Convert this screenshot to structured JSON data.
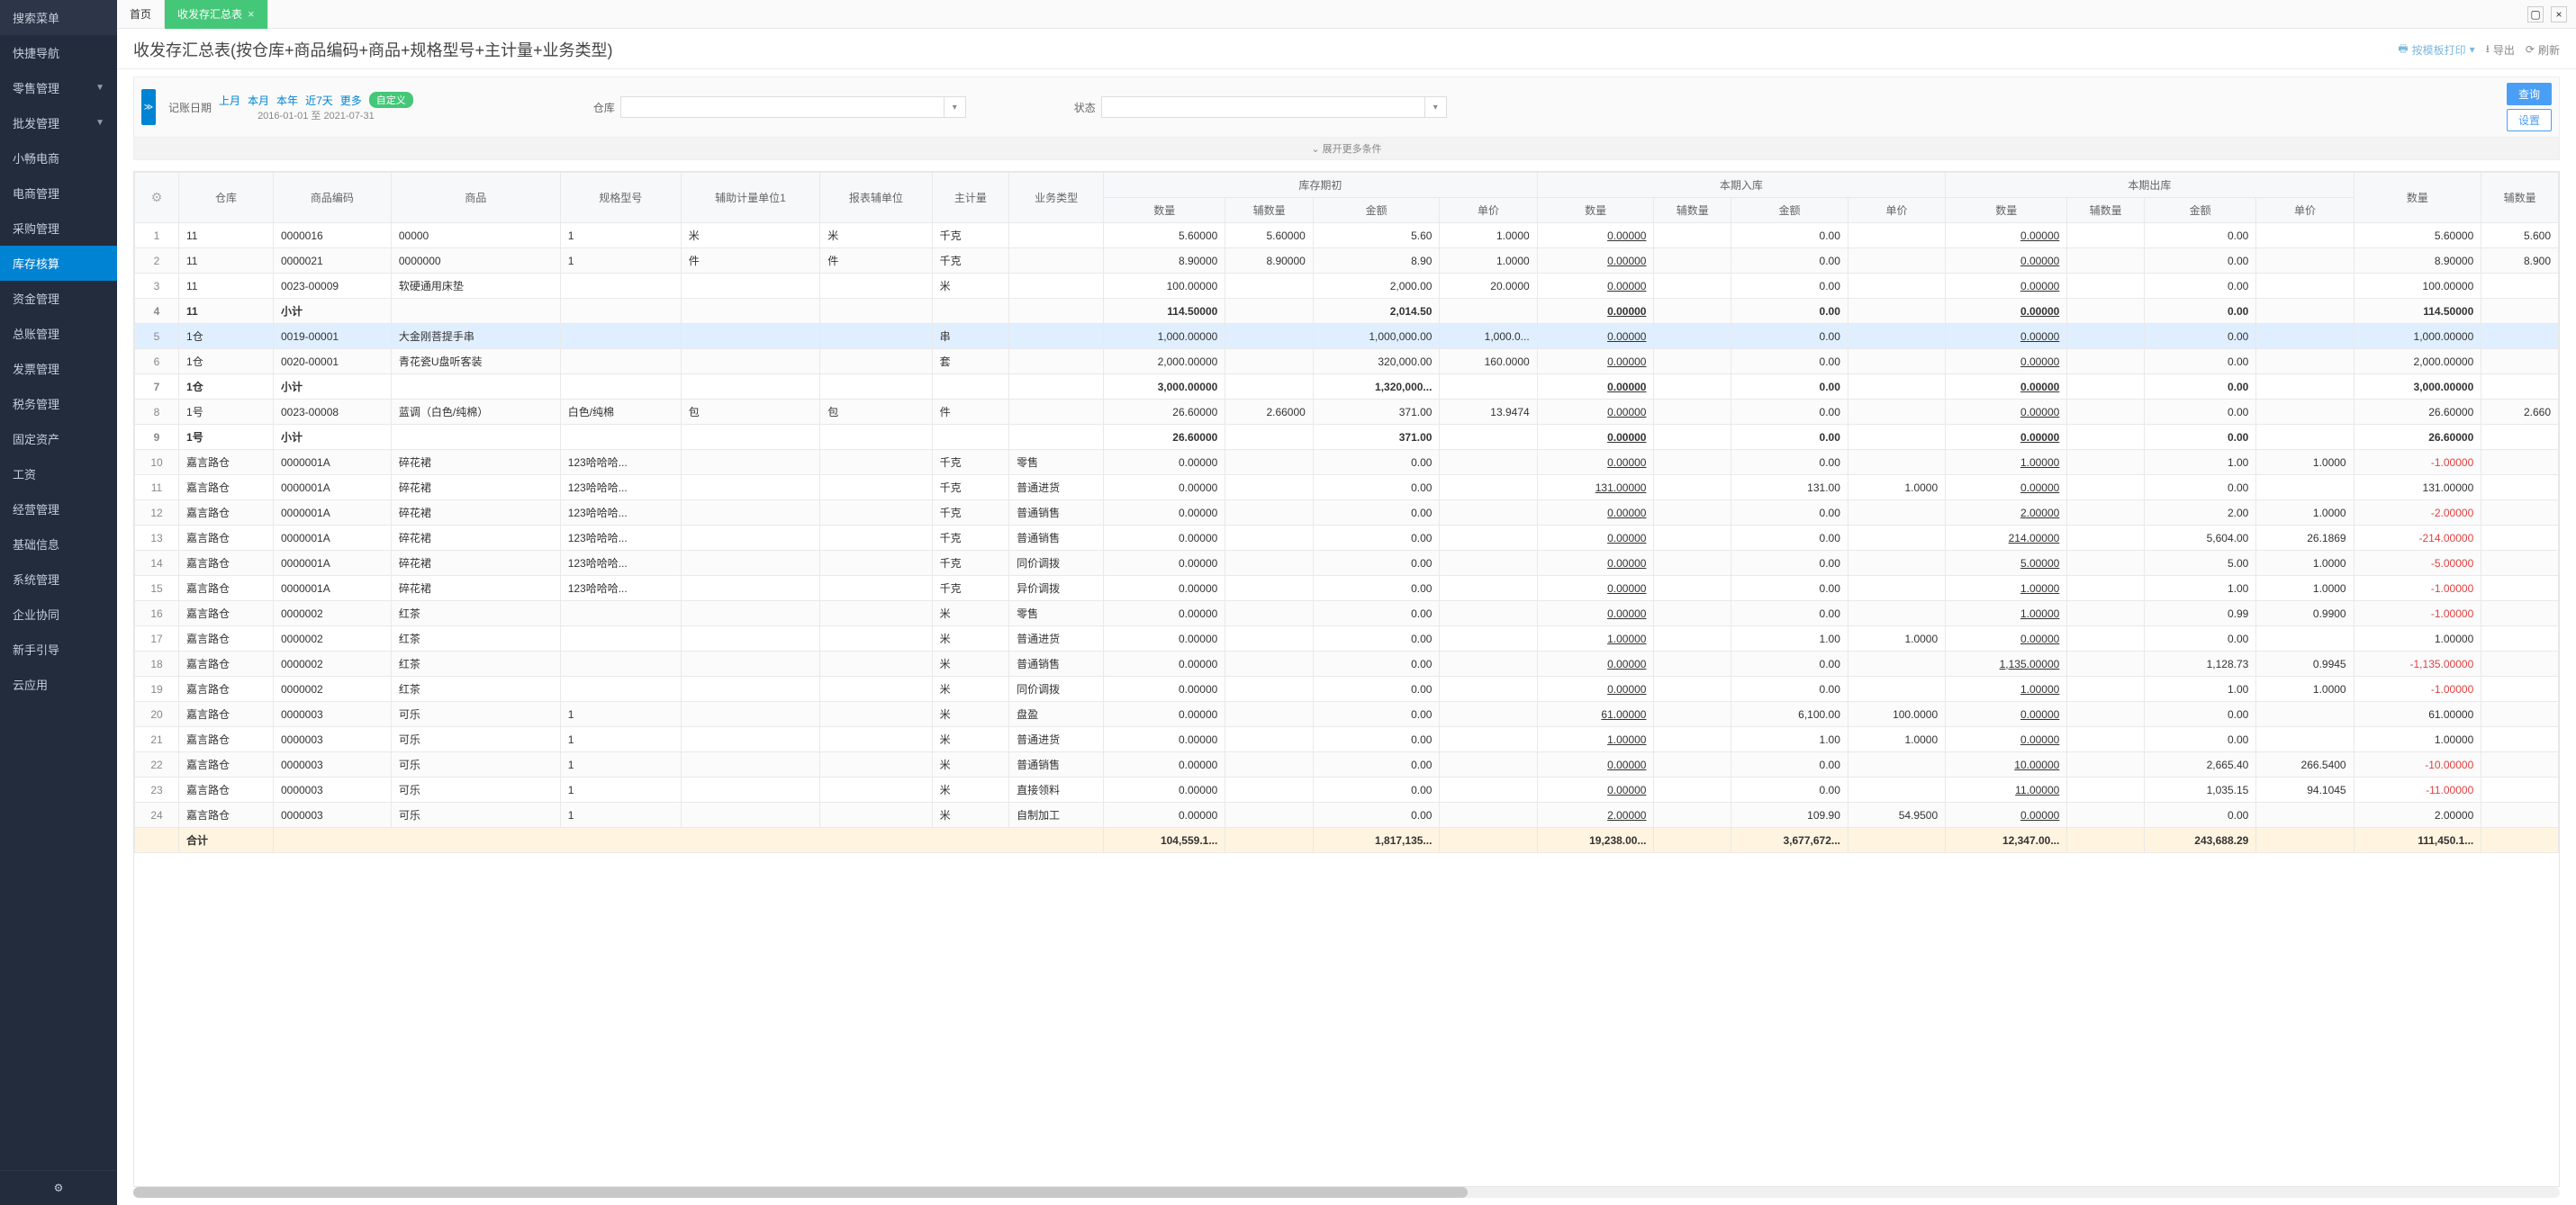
{
  "sidebar": {
    "items": [
      {
        "label": "搜索菜单",
        "expandable": false
      },
      {
        "label": "快捷导航",
        "expandable": false
      },
      {
        "label": "零售管理",
        "expandable": true
      },
      {
        "label": "批发管理",
        "expandable": true
      },
      {
        "label": "小畅电商",
        "expandable": false
      },
      {
        "label": "电商管理",
        "expandable": false
      },
      {
        "label": "采购管理",
        "expandable": false
      },
      {
        "label": "库存核算",
        "expandable": false,
        "active": true
      },
      {
        "label": "资金管理",
        "expandable": false
      },
      {
        "label": "总账管理",
        "expandable": false
      },
      {
        "label": "发票管理",
        "expandable": false
      },
      {
        "label": "税务管理",
        "expandable": false
      },
      {
        "label": "固定资产",
        "expandable": false
      },
      {
        "label": "工资",
        "expandable": false
      },
      {
        "label": "经营管理",
        "expandable": false
      },
      {
        "label": "基础信息",
        "expandable": false
      },
      {
        "label": "系统管理",
        "expandable": false
      },
      {
        "label": "企业协同",
        "expandable": false
      },
      {
        "label": "新手引导",
        "expandable": false
      },
      {
        "label": "云应用",
        "expandable": false
      }
    ],
    "bottom_icon": "⚙"
  },
  "tabs": {
    "home": "首页",
    "active": "收发存汇总表"
  },
  "page": {
    "title": "收发存汇总表(按仓库+商品编码+商品+规格型号+主计量+业务类型)",
    "actions": {
      "print": "按模板打印",
      "export": "导出",
      "refresh": "刷新"
    }
  },
  "filters": {
    "date_label": "记账日期",
    "links": [
      "上月",
      "本月",
      "本年",
      "近7天",
      "更多"
    ],
    "badge": "自定义",
    "range": "2016-01-01 至 2021-07-31",
    "warehouse_label": "仓库",
    "status_label": "状态",
    "query": "查询",
    "settings": "设置",
    "expand": "展开更多条件"
  },
  "table": {
    "group_headers": {
      "opening": "库存期初",
      "in": "本期入库",
      "out": "本期出库"
    },
    "headers": {
      "idx": "",
      "warehouse": "仓库",
      "code": "商品编码",
      "product": "商品",
      "spec": "规格型号",
      "aux_unit": "辅助计量单位1",
      "rpt_unit": "报表辅单位",
      "main_unit": "主计量",
      "biz_type": "业务类型",
      "qty": "数量",
      "aux_qty": "辅数量",
      "amount": "金额",
      "price": "单价"
    },
    "rows": [
      {
        "i": 1,
        "wh": "11",
        "code": "0000016",
        "prod": "00000",
        "spec": "1",
        "aux": "米",
        "rpt": "米",
        "mu": "千克",
        "bt": "",
        "o_qty": "5.60000",
        "o_aux": "5.60000",
        "o_amt": "5.60",
        "o_pr": "1.0000",
        "in_qty": "0.00000",
        "in_aux": "",
        "in_amt": "0.00",
        "in_pr": "",
        "out_qty": "0.00000",
        "out_aux": "",
        "out_amt": "0.00",
        "out_pr": "",
        "e_qty": "5.60000",
        "e_aux": "5.600"
      },
      {
        "i": 2,
        "wh": "11",
        "code": "0000021",
        "prod": "0000000",
        "spec": "1",
        "aux": "件",
        "rpt": "件",
        "mu": "千克",
        "bt": "",
        "o_qty": "8.90000",
        "o_aux": "8.90000",
        "o_amt": "8.90",
        "o_pr": "1.0000",
        "in_qty": "0.00000",
        "in_aux": "",
        "in_amt": "0.00",
        "in_pr": "",
        "out_qty": "0.00000",
        "out_aux": "",
        "out_amt": "0.00",
        "out_pr": "",
        "e_qty": "8.90000",
        "e_aux": "8.900"
      },
      {
        "i": 3,
        "wh": "11",
        "code": "0023-00009",
        "prod": "软硬通用床垫",
        "spec": "",
        "aux": "",
        "rpt": "",
        "mu": "米",
        "bt": "",
        "o_qty": "100.00000",
        "o_aux": "",
        "o_amt": "2,000.00",
        "o_pr": "20.0000",
        "in_qty": "0.00000",
        "in_aux": "",
        "in_amt": "0.00",
        "in_pr": "",
        "out_qty": "0.00000",
        "out_aux": "",
        "out_amt": "0.00",
        "out_pr": "",
        "e_qty": "100.00000",
        "e_aux": ""
      },
      {
        "i": 4,
        "sub": true,
        "wh": "11",
        "code": "小计",
        "prod": "",
        "spec": "",
        "aux": "",
        "rpt": "",
        "mu": "",
        "bt": "",
        "o_qty": "114.50000",
        "o_aux": "",
        "o_amt": "2,014.50",
        "o_pr": "",
        "in_qty": "0.00000",
        "in_aux": "",
        "in_amt": "0.00",
        "in_pr": "",
        "out_qty": "0.00000",
        "out_aux": "",
        "out_amt": "0.00",
        "out_pr": "",
        "e_qty": "114.50000",
        "e_aux": ""
      },
      {
        "i": 5,
        "sel": true,
        "wh": "1仓",
        "code": "0019-00001",
        "prod": "大金刚菩提手串",
        "spec": "",
        "aux": "",
        "rpt": "",
        "mu": "串",
        "bt": "",
        "o_qty": "1,000.00000",
        "o_aux": "",
        "o_amt": "1,000,000.00",
        "o_pr": "1,000.0...",
        "in_qty": "0.00000",
        "in_aux": "",
        "in_amt": "0.00",
        "in_pr": "",
        "out_qty": "0.00000",
        "out_aux": "",
        "out_amt": "0.00",
        "out_pr": "",
        "e_qty": "1,000.00000",
        "e_aux": ""
      },
      {
        "i": 6,
        "wh": "1仓",
        "code": "0020-00001",
        "prod": "青花瓷U盘听客装",
        "spec": "",
        "aux": "",
        "rpt": "",
        "mu": "套",
        "bt": "",
        "o_qty": "2,000.00000",
        "o_aux": "",
        "o_amt": "320,000.00",
        "o_pr": "160.0000",
        "in_qty": "0.00000",
        "in_aux": "",
        "in_amt": "0.00",
        "in_pr": "",
        "out_qty": "0.00000",
        "out_aux": "",
        "out_amt": "0.00",
        "out_pr": "",
        "e_qty": "2,000.00000",
        "e_aux": ""
      },
      {
        "i": 7,
        "sub": true,
        "wh": "1仓",
        "code": "小计",
        "prod": "",
        "spec": "",
        "aux": "",
        "rpt": "",
        "mu": "",
        "bt": "",
        "o_qty": "3,000.00000",
        "o_aux": "",
        "o_amt": "1,320,000...",
        "o_pr": "",
        "in_qty": "0.00000",
        "in_aux": "",
        "in_amt": "0.00",
        "in_pr": "",
        "out_qty": "0.00000",
        "out_aux": "",
        "out_amt": "0.00",
        "out_pr": "",
        "e_qty": "3,000.00000",
        "e_aux": ""
      },
      {
        "i": 8,
        "wh": "1号",
        "code": "0023-00008",
        "prod": "蓝调（白色/纯棉）",
        "spec": "白色/纯棉",
        "aux": "包",
        "rpt": "包",
        "mu": "件",
        "bt": "",
        "o_qty": "26.60000",
        "o_aux": "2.66000",
        "o_amt": "371.00",
        "o_pr": "13.9474",
        "in_qty": "0.00000",
        "in_aux": "",
        "in_amt": "0.00",
        "in_pr": "",
        "out_qty": "0.00000",
        "out_aux": "",
        "out_amt": "0.00",
        "out_pr": "",
        "e_qty": "26.60000",
        "e_aux": "2.660"
      },
      {
        "i": 9,
        "sub": true,
        "wh": "1号",
        "code": "小计",
        "prod": "",
        "spec": "",
        "aux": "",
        "rpt": "",
        "mu": "",
        "bt": "",
        "o_qty": "26.60000",
        "o_aux": "",
        "o_amt": "371.00",
        "o_pr": "",
        "in_qty": "0.00000",
        "in_aux": "",
        "in_amt": "0.00",
        "in_pr": "",
        "out_qty": "0.00000",
        "out_aux": "",
        "out_amt": "0.00",
        "out_pr": "",
        "e_qty": "26.60000",
        "e_aux": ""
      },
      {
        "i": 10,
        "wh": "嘉言路仓",
        "code": "0000001A",
        "prod": "碎花裙",
        "spec": "123哈哈哈...",
        "aux": "",
        "rpt": "",
        "mu": "千克",
        "bt": "零售",
        "o_qty": "0.00000",
        "o_aux": "",
        "o_amt": "0.00",
        "o_pr": "",
        "in_qty": "0.00000",
        "in_aux": "",
        "in_amt": "0.00",
        "in_pr": "",
        "out_qty": "1.00000",
        "out_aux": "",
        "out_amt": "1.00",
        "out_pr": "1.0000",
        "e_qty": "-1.00000",
        "e_aux": "",
        "e_neg": true
      },
      {
        "i": 11,
        "wh": "嘉言路仓",
        "code": "0000001A",
        "prod": "碎花裙",
        "spec": "123哈哈哈...",
        "aux": "",
        "rpt": "",
        "mu": "千克",
        "bt": "普通进货",
        "o_qty": "0.00000",
        "o_aux": "",
        "o_amt": "0.00",
        "o_pr": "",
        "in_qty": "131.00000",
        "in_aux": "",
        "in_amt": "131.00",
        "in_pr": "1.0000",
        "out_qty": "0.00000",
        "out_aux": "",
        "out_amt": "0.00",
        "out_pr": "",
        "e_qty": "131.00000",
        "e_aux": ""
      },
      {
        "i": 12,
        "wh": "嘉言路仓",
        "code": "0000001A",
        "prod": "碎花裙",
        "spec": "123哈哈哈...",
        "aux": "",
        "rpt": "",
        "mu": "千克",
        "bt": "普通销售",
        "o_qty": "0.00000",
        "o_aux": "",
        "o_amt": "0.00",
        "o_pr": "",
        "in_qty": "0.00000",
        "in_aux": "",
        "in_amt": "0.00",
        "in_pr": "",
        "out_qty": "2.00000",
        "out_aux": "",
        "out_amt": "2.00",
        "out_pr": "1.0000",
        "e_qty": "-2.00000",
        "e_aux": "",
        "e_neg": true
      },
      {
        "i": 13,
        "wh": "嘉言路仓",
        "code": "0000001A",
        "prod": "碎花裙",
        "spec": "123哈哈哈...",
        "aux": "",
        "rpt": "",
        "mu": "千克",
        "bt": "普通销售",
        "o_qty": "0.00000",
        "o_aux": "",
        "o_amt": "0.00",
        "o_pr": "",
        "in_qty": "0.00000",
        "in_aux": "",
        "in_amt": "0.00",
        "in_pr": "",
        "out_qty": "214.00000",
        "out_aux": "",
        "out_amt": "5,604.00",
        "out_pr": "26.1869",
        "e_qty": "-214.00000",
        "e_aux": "",
        "e_neg": true
      },
      {
        "i": 14,
        "wh": "嘉言路仓",
        "code": "0000001A",
        "prod": "碎花裙",
        "spec": "123哈哈哈...",
        "aux": "",
        "rpt": "",
        "mu": "千克",
        "bt": "同价调拨",
        "o_qty": "0.00000",
        "o_aux": "",
        "o_amt": "0.00",
        "o_pr": "",
        "in_qty": "0.00000",
        "in_aux": "",
        "in_amt": "0.00",
        "in_pr": "",
        "out_qty": "5.00000",
        "out_aux": "",
        "out_amt": "5.00",
        "out_pr": "1.0000",
        "e_qty": "-5.00000",
        "e_aux": "",
        "e_neg": true
      },
      {
        "i": 15,
        "wh": "嘉言路仓",
        "code": "0000001A",
        "prod": "碎花裙",
        "spec": "123哈哈哈...",
        "aux": "",
        "rpt": "",
        "mu": "千克",
        "bt": "异价调拨",
        "o_qty": "0.00000",
        "o_aux": "",
        "o_amt": "0.00",
        "o_pr": "",
        "in_qty": "0.00000",
        "in_aux": "",
        "in_amt": "0.00",
        "in_pr": "",
        "out_qty": "1.00000",
        "out_aux": "",
        "out_amt": "1.00",
        "out_pr": "1.0000",
        "e_qty": "-1.00000",
        "e_aux": "",
        "e_neg": true
      },
      {
        "i": 16,
        "wh": "嘉言路仓",
        "code": "0000002",
        "prod": "红茶",
        "spec": "",
        "aux": "",
        "rpt": "",
        "mu": "米",
        "bt": "零售",
        "o_qty": "0.00000",
        "o_aux": "",
        "o_amt": "0.00",
        "o_pr": "",
        "in_qty": "0.00000",
        "in_aux": "",
        "in_amt": "0.00",
        "in_pr": "",
        "out_qty": "1.00000",
        "out_aux": "",
        "out_amt": "0.99",
        "out_pr": "0.9900",
        "e_qty": "-1.00000",
        "e_aux": "",
        "e_neg": true
      },
      {
        "i": 17,
        "wh": "嘉言路仓",
        "code": "0000002",
        "prod": "红茶",
        "spec": "",
        "aux": "",
        "rpt": "",
        "mu": "米",
        "bt": "普通进货",
        "o_qty": "0.00000",
        "o_aux": "",
        "o_amt": "0.00",
        "o_pr": "",
        "in_qty": "1.00000",
        "in_aux": "",
        "in_amt": "1.00",
        "in_pr": "1.0000",
        "out_qty": "0.00000",
        "out_aux": "",
        "out_amt": "0.00",
        "out_pr": "",
        "e_qty": "1.00000",
        "e_aux": ""
      },
      {
        "i": 18,
        "wh": "嘉言路仓",
        "code": "0000002",
        "prod": "红茶",
        "spec": "",
        "aux": "",
        "rpt": "",
        "mu": "米",
        "bt": "普通销售",
        "o_qty": "0.00000",
        "o_aux": "",
        "o_amt": "0.00",
        "o_pr": "",
        "in_qty": "0.00000",
        "in_aux": "",
        "in_amt": "0.00",
        "in_pr": "",
        "out_qty": "1,135.00000",
        "out_aux": "",
        "out_amt": "1,128.73",
        "out_pr": "0.9945",
        "e_qty": "-1,135.00000",
        "e_aux": "",
        "e_neg": true
      },
      {
        "i": 19,
        "wh": "嘉言路仓",
        "code": "0000002",
        "prod": "红茶",
        "spec": "",
        "aux": "",
        "rpt": "",
        "mu": "米",
        "bt": "同价调拨",
        "o_qty": "0.00000",
        "o_aux": "",
        "o_amt": "0.00",
        "o_pr": "",
        "in_qty": "0.00000",
        "in_aux": "",
        "in_amt": "0.00",
        "in_pr": "",
        "out_qty": "1.00000",
        "out_aux": "",
        "out_amt": "1.00",
        "out_pr": "1.0000",
        "e_qty": "-1.00000",
        "e_aux": "",
        "e_neg": true
      },
      {
        "i": 20,
        "wh": "嘉言路仓",
        "code": "0000003",
        "prod": "可乐",
        "spec": "1",
        "aux": "",
        "rpt": "",
        "mu": "米",
        "bt": "盘盈",
        "o_qty": "0.00000",
        "o_aux": "",
        "o_amt": "0.00",
        "o_pr": "",
        "in_qty": "61.00000",
        "in_aux": "",
        "in_amt": "6,100.00",
        "in_pr": "100.0000",
        "out_qty": "0.00000",
        "out_aux": "",
        "out_amt": "0.00",
        "out_pr": "",
        "e_qty": "61.00000",
        "e_aux": ""
      },
      {
        "i": 21,
        "wh": "嘉言路仓",
        "code": "0000003",
        "prod": "可乐",
        "spec": "1",
        "aux": "",
        "rpt": "",
        "mu": "米",
        "bt": "普通进货",
        "o_qty": "0.00000",
        "o_aux": "",
        "o_amt": "0.00",
        "o_pr": "",
        "in_qty": "1.00000",
        "in_aux": "",
        "in_amt": "1.00",
        "in_pr": "1.0000",
        "out_qty": "0.00000",
        "out_aux": "",
        "out_amt": "0.00",
        "out_pr": "",
        "e_qty": "1.00000",
        "e_aux": ""
      },
      {
        "i": 22,
        "wh": "嘉言路仓",
        "code": "0000003",
        "prod": "可乐",
        "spec": "1",
        "aux": "",
        "rpt": "",
        "mu": "米",
        "bt": "普通销售",
        "o_qty": "0.00000",
        "o_aux": "",
        "o_amt": "0.00",
        "o_pr": "",
        "in_qty": "0.00000",
        "in_aux": "",
        "in_amt": "0.00",
        "in_pr": "",
        "out_qty": "10.00000",
        "out_aux": "",
        "out_amt": "2,665.40",
        "out_pr": "266.5400",
        "e_qty": "-10.00000",
        "e_aux": "",
        "e_neg": true
      },
      {
        "i": 23,
        "wh": "嘉言路仓",
        "code": "0000003",
        "prod": "可乐",
        "spec": "1",
        "aux": "",
        "rpt": "",
        "mu": "米",
        "bt": "直接领料",
        "o_qty": "0.00000",
        "o_aux": "",
        "o_amt": "0.00",
        "o_pr": "",
        "in_qty": "0.00000",
        "in_aux": "",
        "in_amt": "0.00",
        "in_pr": "",
        "out_qty": "11.00000",
        "out_aux": "",
        "out_amt": "1,035.15",
        "out_pr": "94.1045",
        "e_qty": "-11.00000",
        "e_aux": "",
        "e_neg": true
      },
      {
        "i": 24,
        "wh": "嘉言路仓",
        "code": "0000003",
        "prod": "可乐",
        "spec": "1",
        "aux": "",
        "rpt": "",
        "mu": "米",
        "bt": "自制加工",
        "o_qty": "0.00000",
        "o_aux": "",
        "o_amt": "0.00",
        "o_pr": "",
        "in_qty": "2.00000",
        "in_aux": "",
        "in_amt": "109.90",
        "in_pr": "54.9500",
        "out_qty": "0.00000",
        "out_aux": "",
        "out_amt": "0.00",
        "out_pr": "",
        "e_qty": "2.00000",
        "e_aux": ""
      }
    ],
    "footer": {
      "label": "合计",
      "o_qty": "104,559.1...",
      "o_amt": "1,817,135...",
      "in_qty": "19,238.00...",
      "in_amt": "3,677,672...",
      "out_qty": "12,347.00...",
      "out_amt": "243,688.29",
      "e_qty": "111,450.1..."
    }
  }
}
